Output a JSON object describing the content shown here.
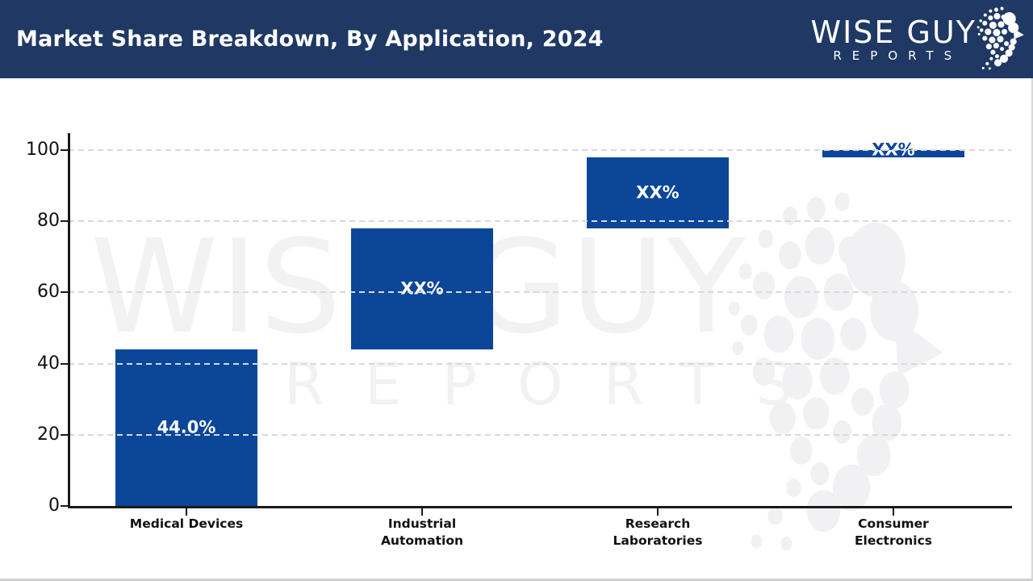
{
  "header": {
    "title": "Market Share Breakdown, By Application, 2024",
    "logo": {
      "brand_top": "WISE GUY",
      "brand_bottom": "REPORTS"
    }
  },
  "watermark": {
    "text_top": "WISE GUY",
    "text_bottom": "REPORTS"
  },
  "chart_data": {
    "type": "bar",
    "subtype": "floating-segment-waterfall",
    "title": "Market Share Breakdown, By Application, 2024",
    "categories": [
      "Medical Devices",
      "Industrial\nAutomation",
      "Research\nLaboratories",
      "Consumer\nElectronics"
    ],
    "segments": [
      {
        "category": "Medical Devices",
        "start": 0,
        "end": 44,
        "label": "44.0%"
      },
      {
        "category": "Industrial Automation",
        "start": 44,
        "end": 78,
        "label": "XX%"
      },
      {
        "category": "Research Laboratories",
        "start": 78,
        "end": 98,
        "label": "XX%"
      },
      {
        "category": "Consumer Electronics",
        "start": 98,
        "end": 100,
        "label": "XX%"
      }
    ],
    "ylim": [
      0,
      100
    ],
    "yticks": [
      0,
      20,
      40,
      60,
      80,
      100
    ],
    "xlabel": "",
    "ylabel": "",
    "grid": "horizontal-dashed",
    "legend": "none",
    "bar_color": "#0b4699",
    "bar_label_color": "#ffffff"
  },
  "colors": {
    "header_bg": "#1f3864",
    "bar": "#0b4699",
    "grid": "#d9d9d9",
    "axis": "#1a1a1a",
    "watermark": "#f2f2f2"
  }
}
